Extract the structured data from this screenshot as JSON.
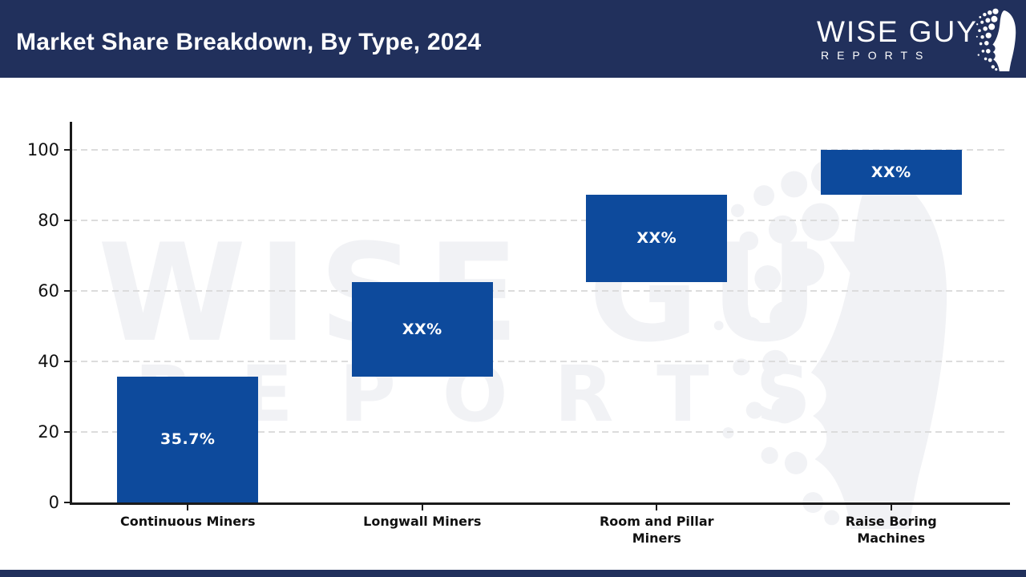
{
  "header": {
    "title": "Market Share Breakdown, By Type, 2024",
    "logo": {
      "name_top": "WISE GUY",
      "name_bottom": "REPORTS"
    }
  },
  "watermark": {
    "line1": "WISE GUY",
    "line2": "REPORTS"
  },
  "colors": {
    "header_bg": "#21305c",
    "bar": "#0d4a9c",
    "grid": "#dcdcdc",
    "axis": "#1a1a1a",
    "bar_label_text": "#ffffff",
    "watermark_text": "#f1f2f5"
  },
  "chart_data": {
    "type": "bar",
    "subtype": "floating-segment-waterfall",
    "title": "Market Share Breakdown, By Type, 2024",
    "categories": [
      "Continuous Miners",
      "Longwall Miners",
      "Room and Pillar\nMiners",
      "Raise Boring\nMachines"
    ],
    "segments": [
      {
        "category": "Continuous Miners",
        "start": 0,
        "end": 35.7,
        "label": "35.7%"
      },
      {
        "category": "Longwall Miners",
        "start": 35.7,
        "end": 62.5,
        "label": "XX%"
      },
      {
        "category": "Room and Pillar Miners",
        "start": 62.5,
        "end": 87.3,
        "label": "XX%"
      },
      {
        "category": "Raise Boring Machines",
        "start": 87.3,
        "end": 100,
        "label": "XX%"
      }
    ],
    "ylim": [
      0,
      100
    ],
    "yticks": [
      0,
      20,
      40,
      60,
      80,
      100
    ],
    "xlabel": "",
    "ylabel": "",
    "grid": "horizontal-dashed",
    "legend": "none"
  }
}
